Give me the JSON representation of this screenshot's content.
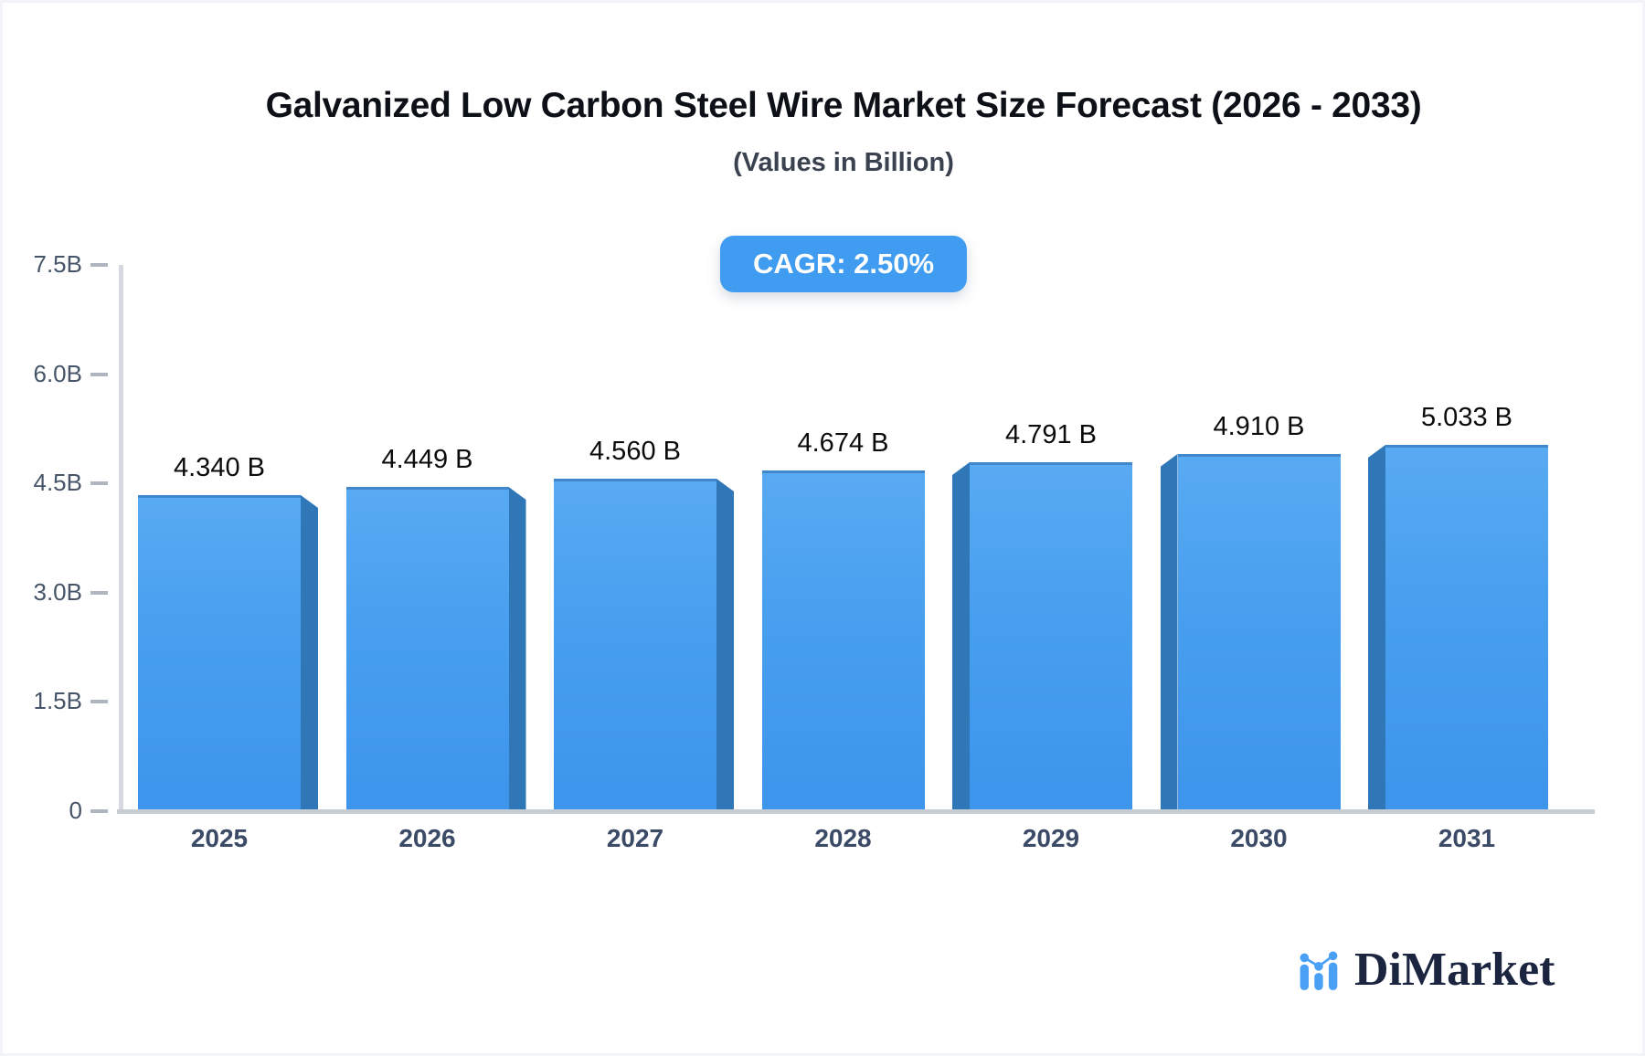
{
  "title": "Galvanized Low Carbon Steel Wire Market Size Forecast (2026 - 2033)",
  "subtitle": "(Values in Billion)",
  "badge": {
    "label": "CAGR: 2.50%"
  },
  "watermark": {
    "brand": "DiMarket",
    "icon": "bar-line-chart-icon"
  },
  "chart_data": {
    "type": "bar",
    "title": "Galvanized Low Carbon Steel Wire Market Size Forecast (2026 - 2033)",
    "subtitle": "(Values in Billion)",
    "categories": [
      "2025",
      "2026",
      "2027",
      "2028",
      "2029",
      "2030",
      "2031"
    ],
    "values": [
      4.34,
      4.449,
      4.56,
      4.674,
      4.791,
      4.91,
      5.033
    ],
    "value_labels": [
      "4.340 B",
      "4.449 B",
      "4.560 B",
      "4.674 B",
      "4.791 B",
      "4.910 B",
      "5.033 B"
    ],
    "y_ticks": [
      "7.5B",
      "6.0B",
      "4.5B",
      "3.0B",
      "1.5B",
      "0"
    ],
    "ylim": [
      0,
      7.5
    ],
    "xlabel": "",
    "ylabel": "",
    "grid": false,
    "legend": false,
    "cagr": "CAGR: 2.50%",
    "bar_color": "#459def",
    "bar_side_color": "#3077b7",
    "axis_color": "#c8ccd3",
    "badge_color": "#3f9cf1"
  }
}
